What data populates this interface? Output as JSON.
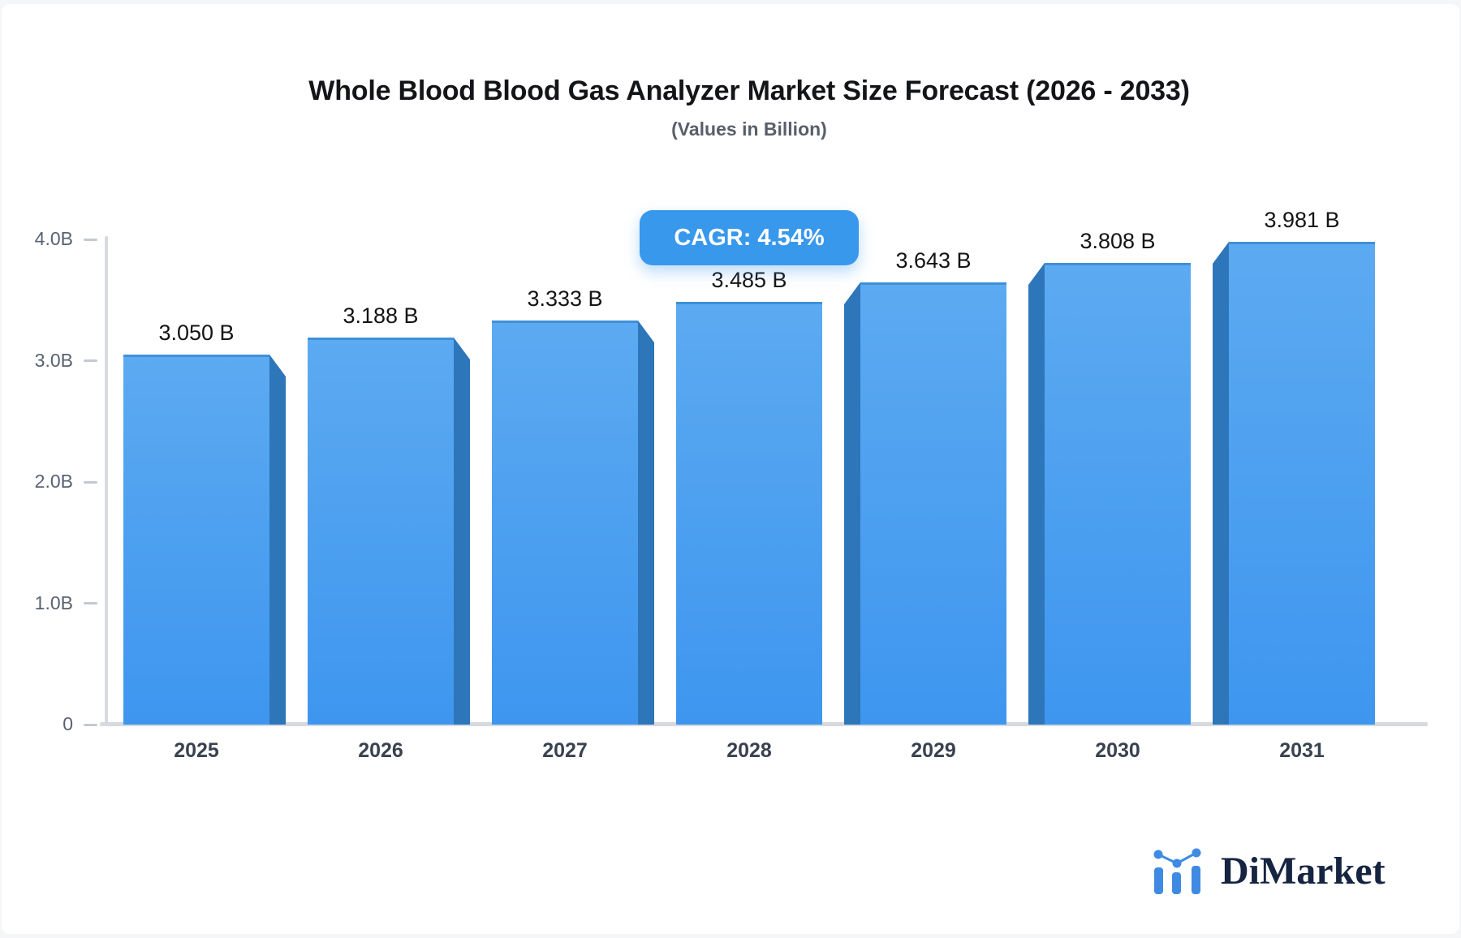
{
  "header": {
    "title": "Whole Blood Blood Gas Analyzer Market Size Forecast (2026 - 2033)",
    "subtitle": "(Values in Billion)"
  },
  "cagr_badge": {
    "label": "CAGR: 4.54%",
    "color": "#3898ec"
  },
  "chart_data": {
    "type": "bar",
    "title": "Whole Blood Blood Gas Analyzer Market Size Forecast (2026 - 2033)",
    "subtitle": "(Values in Billion)",
    "categories": [
      "2025",
      "2026",
      "2027",
      "2028",
      "2029",
      "2030",
      "2031"
    ],
    "values": [
      3.05,
      3.188,
      3.333,
      3.485,
      3.643,
      3.808,
      3.981
    ],
    "bar_labels": [
      "3.050 B",
      "3.188 B",
      "3.333 B",
      "3.485 B",
      "3.643 B",
      "3.808 B",
      "3.981 B"
    ],
    "xlabel": "",
    "ylabel": "",
    "ylim": [
      0,
      4
    ],
    "yticks": [
      {
        "value": 0,
        "label": "0"
      },
      {
        "value": 1.0,
        "label": "1.0B"
      },
      {
        "value": 2.0,
        "label": "2.0B"
      },
      {
        "value": 3.0,
        "label": "3.0B"
      },
      {
        "value": 4.0,
        "label": "4.0B"
      }
    ],
    "grid": false,
    "legend": false,
    "annotations": [
      {
        "text": "CAGR: 4.54%",
        "position": "above-2028-bar"
      }
    ],
    "colors": {
      "bar_face_top": "#5caaf1",
      "bar_face_bottom": "#3e96ef",
      "bar_side": "#2e76ba",
      "bar_top_edge": "#4090d8"
    }
  },
  "branding": {
    "logo_text": "DiMarket",
    "logo_icon": "bar-line-chart-icon",
    "brand_blue": "#3f8be4",
    "brand_navy": "#152440"
  }
}
